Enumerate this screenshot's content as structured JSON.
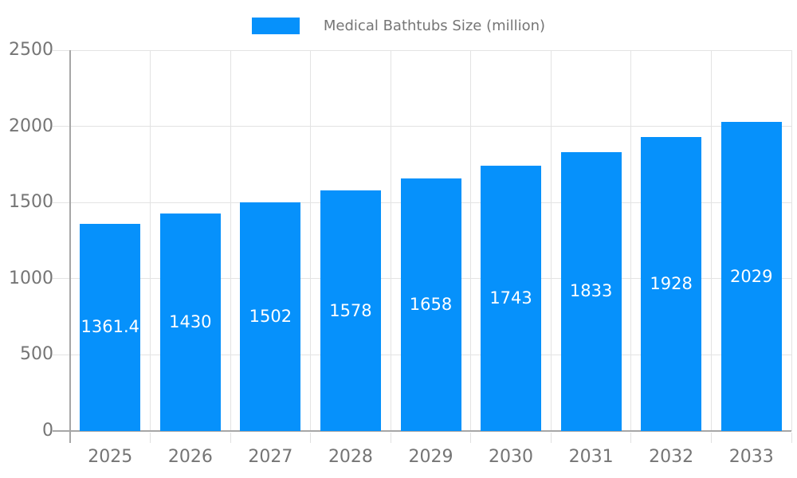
{
  "legend": {
    "label": "Medical Bathtubs Size (million)"
  },
  "chart_data": {
    "type": "bar",
    "title": "Medical Bathtubs Size (million)",
    "categories": [
      "2025",
      "2026",
      "2027",
      "2028",
      "2029",
      "2030",
      "2031",
      "2032",
      "2033"
    ],
    "values": [
      1361.4,
      1430,
      1502,
      1578,
      1658,
      1743,
      1833,
      1928,
      2029
    ],
    "value_labels": [
      "1361.4",
      "1430",
      "1502",
      "1578",
      "1658",
      "1743",
      "1833",
      "1928",
      "2029"
    ],
    "series": [
      {
        "name": "Medical Bathtubs Size (million)",
        "values": [
          1361.4,
          1430,
          1502,
          1578,
          1658,
          1743,
          1833,
          1928,
          2029
        ]
      }
    ],
    "xlabel": "",
    "ylabel": "",
    "ylim": [
      0,
      2500
    ],
    "yticks": [
      0,
      500,
      1000,
      1500,
      2000,
      2500
    ],
    "ytick_labels": [
      "0",
      "500",
      "1000",
      "1500",
      "2000",
      "2500"
    ],
    "grid": true,
    "legend_position": "top-center",
    "colors": {
      "bar": "#0691fb",
      "value_label": "#ffffff",
      "tick_label": "#757575",
      "gridline": "#e3e3e3",
      "axis_line": "#a6a6a6",
      "background": "#ffffff"
    }
  }
}
